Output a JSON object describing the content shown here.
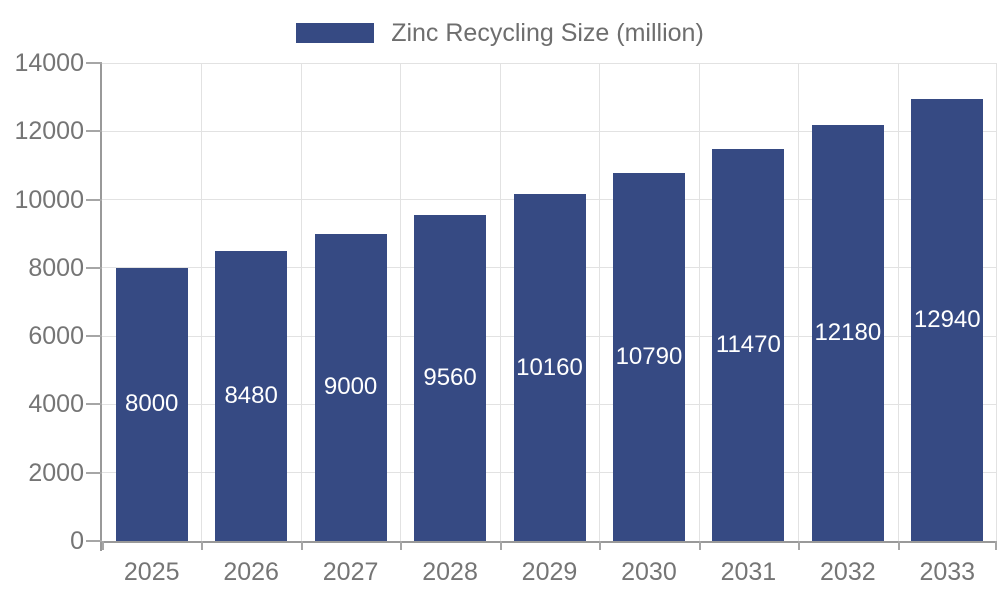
{
  "chart_data": {
    "type": "bar",
    "title": "Zinc Recycling Size (million)",
    "legend_label": "Zinc Recycling Size (million)",
    "legend_position": "top-center",
    "categories": [
      "2025",
      "2026",
      "2027",
      "2028",
      "2029",
      "2030",
      "2031",
      "2032",
      "2033"
    ],
    "values": [
      8000,
      8480,
      9000,
      9560,
      10160,
      10790,
      11470,
      12180,
      12940
    ],
    "value_labels": [
      "8000",
      "8480",
      "9000",
      "9560",
      "10160",
      "10790",
      "11470",
      "12180",
      "12940"
    ],
    "value_label_position": "inside-center",
    "xlabel": "",
    "ylabel": "",
    "ylim": [
      0,
      14000
    ],
    "ytick_step": 2000,
    "ytick_labels": [
      "0",
      "2000",
      "4000",
      "6000",
      "8000",
      "10000",
      "12000",
      "14000"
    ],
    "grid": true,
    "colors": {
      "bar": "#364A83",
      "axis": "#999999",
      "tick": "#a6a6a6",
      "gridline": "#e2e2e2",
      "axis_label": "#757575",
      "value_label": "#ffffff",
      "legend_text": "#6e6e6e",
      "background": "#ffffff"
    }
  }
}
